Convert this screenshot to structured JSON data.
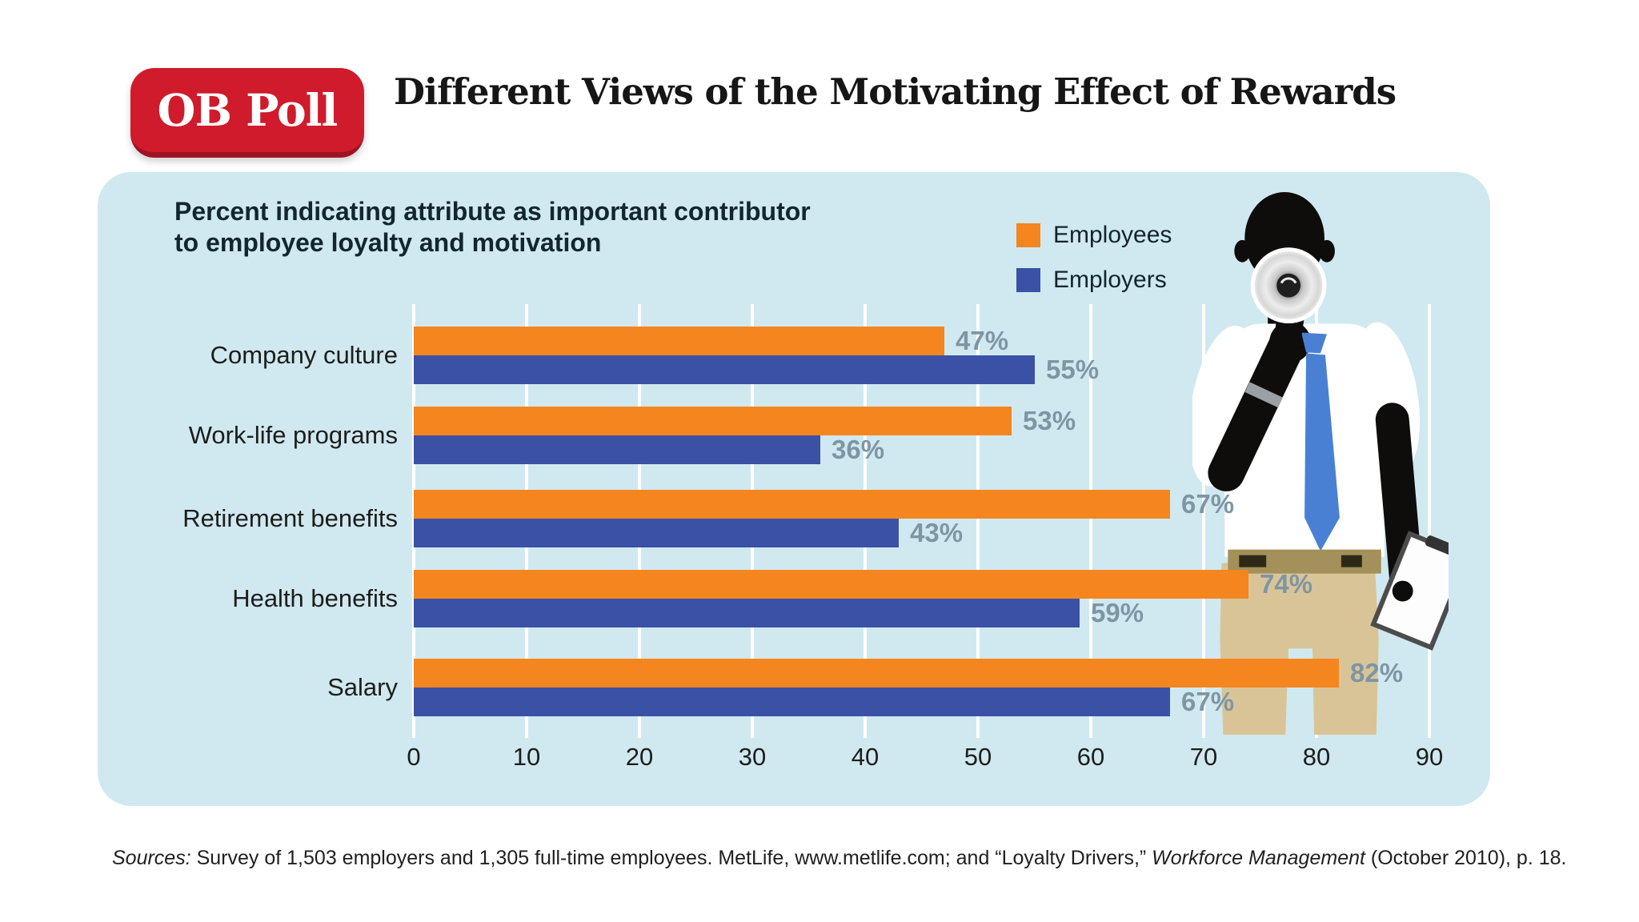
{
  "header": {
    "badge": "OB Poll",
    "title": "Different Views of the Motivating Effect of Rewards"
  },
  "chart_data": {
    "type": "bar",
    "orientation": "horizontal",
    "title": "Percent indicating attribute as important contributor to employee loyalty and motivation",
    "subtitle_line1": "Percent indicating attribute as important contributor",
    "subtitle_line2": "to employee loyalty and motivation",
    "categories": [
      "Company culture",
      "Work-life programs",
      "Retirement benefits",
      "Health benefits",
      "Salary"
    ],
    "series": [
      {
        "name": "Employees",
        "color": "#f5851f",
        "values": [
          47,
          53,
          67,
          74,
          82
        ]
      },
      {
        "name": "Employers",
        "color": "#3a51a5",
        "values": [
          55,
          36,
          43,
          59,
          67
        ]
      }
    ],
    "value_suffix": "%",
    "xlim": [
      0,
      95
    ],
    "xticks": [
      0,
      10,
      20,
      30,
      40,
      50,
      60,
      70,
      80,
      90
    ],
    "grid": "vertical-white-lines",
    "legend_position": "top-right"
  },
  "legend": {
    "employees_label": "Employees",
    "employers_label": "Employers"
  },
  "source": {
    "label_italic": "Sources: ",
    "text_1": "Survey of 1,503 employers and 1,305 full-time employees. MetLife, www.metlife.com; and “Loyalty Drivers,” ",
    "journal_italic": "Workforce Management",
    "text_2": " (October 2010), p. 18."
  },
  "icons": {
    "announcer_illustration": "person-with-megaphone-holding-clipboard"
  },
  "colors": {
    "badge_red": "#cf1b2b",
    "panel_background": "#d0e9f0",
    "employees_orange": "#f5851f",
    "employers_blue": "#3a51a5",
    "value_label_gray": "#7e96a4",
    "gridline_white": "#ffffff",
    "text_dark": "#1d1d1b",
    "tie_blue": "#4a80d4",
    "pants_tan": "#d9c498",
    "belt_tan": "#a3905a",
    "silhouette_black": "#0e0d0b"
  }
}
